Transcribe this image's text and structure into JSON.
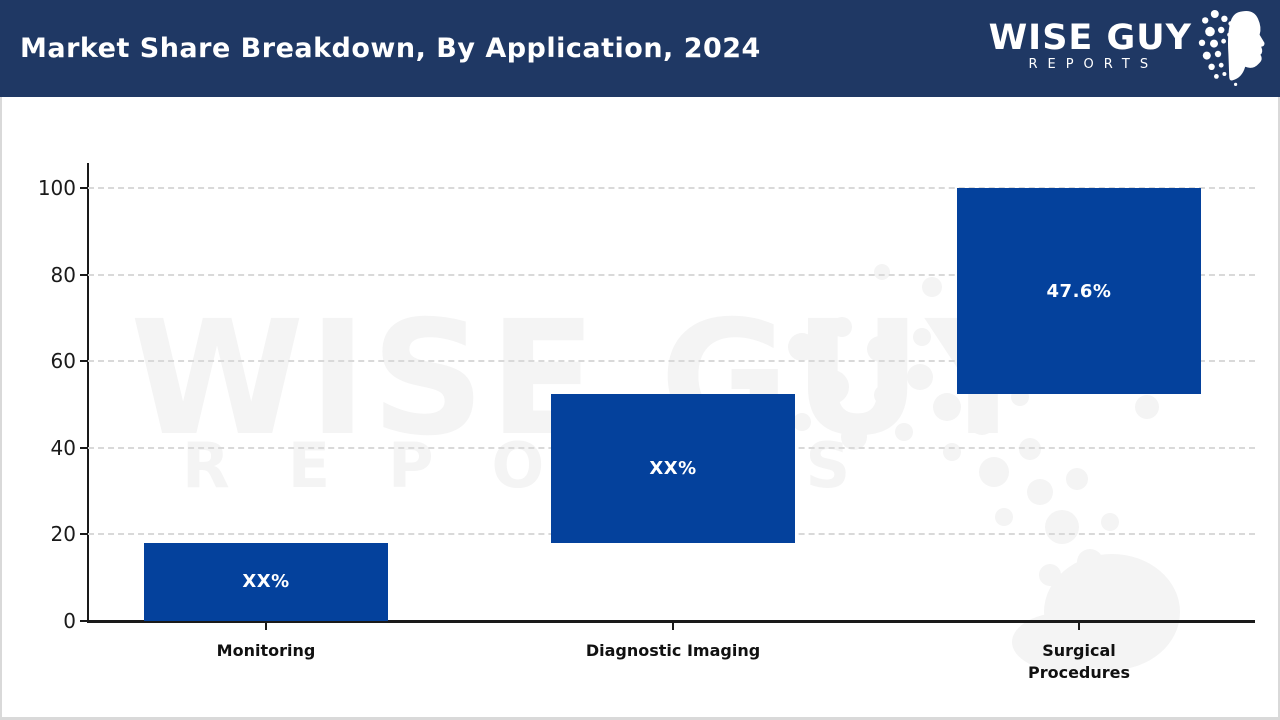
{
  "header": {
    "title": "Market Share Breakdown, By Application, 2024",
    "logo": {
      "name": "WISE GUY",
      "sub": "REPORTS"
    }
  },
  "watermark": {
    "name": "WISE GUY",
    "sub": "REPORTS"
  },
  "colors": {
    "header_bg": "#1f3864",
    "bar": "#04419c",
    "bar_label": "#ffffff",
    "gridline": "#d9d9d9",
    "axis": "#1a1a1a",
    "watermark": "#f4f4f4"
  },
  "chart_data": {
    "type": "bar",
    "variant": "floating-waterfall",
    "title": "Market Share Breakdown, By Application, 2024",
    "categories": [
      "Monitoring",
      "Diagnostic Imaging",
      "Surgical\nProcedures"
    ],
    "segments": [
      {
        "category": "Monitoring",
        "start": 0,
        "end": 18.1,
        "label": "XX%"
      },
      {
        "category": "Diagnostic Imaging",
        "start": 18.1,
        "end": 52.4,
        "label": "XX%"
      },
      {
        "category": "Surgical Procedures",
        "start": 52.4,
        "end": 100,
        "label": "47.6%"
      }
    ],
    "xlabel": "",
    "ylabel": "",
    "ylim": [
      0,
      100
    ],
    "yticks": [
      0,
      20,
      40,
      60,
      80,
      100
    ],
    "grid": "horizontal-dashed",
    "legend": "none",
    "bar_color": "#04419c",
    "label_color": "#ffffff"
  }
}
